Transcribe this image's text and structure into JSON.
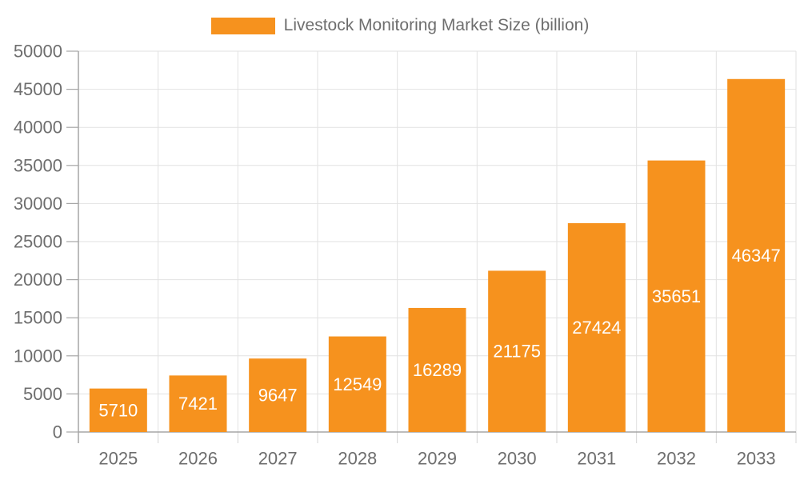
{
  "chart_data": {
    "type": "bar",
    "title": "Livestock Monitoring Market Size (billion)",
    "categories": [
      "2025",
      "2026",
      "2027",
      "2028",
      "2029",
      "2030",
      "2031",
      "2032",
      "2033"
    ],
    "values": [
      5710,
      7421,
      9647,
      12549,
      16289,
      21175,
      27424,
      35651,
      46347
    ],
    "xlabel": "",
    "ylabel": "",
    "ylim": [
      0,
      50000
    ],
    "ytick_step": 5000,
    "yticks": [
      0,
      5000,
      10000,
      15000,
      20000,
      25000,
      30000,
      35000,
      40000,
      45000,
      50000
    ],
    "grid": true,
    "legend_position": "top",
    "value_labels": "inside-center",
    "bar_color": "#f6921e",
    "value_label_color": "#ffffff",
    "axis_text_color": "#6e6e6e",
    "gridline_color": "#e2e2e2",
    "axis_line_color": "#a6a6a6",
    "minor_tick_color": "#d4d4d4",
    "background_color": "#ffffff"
  }
}
